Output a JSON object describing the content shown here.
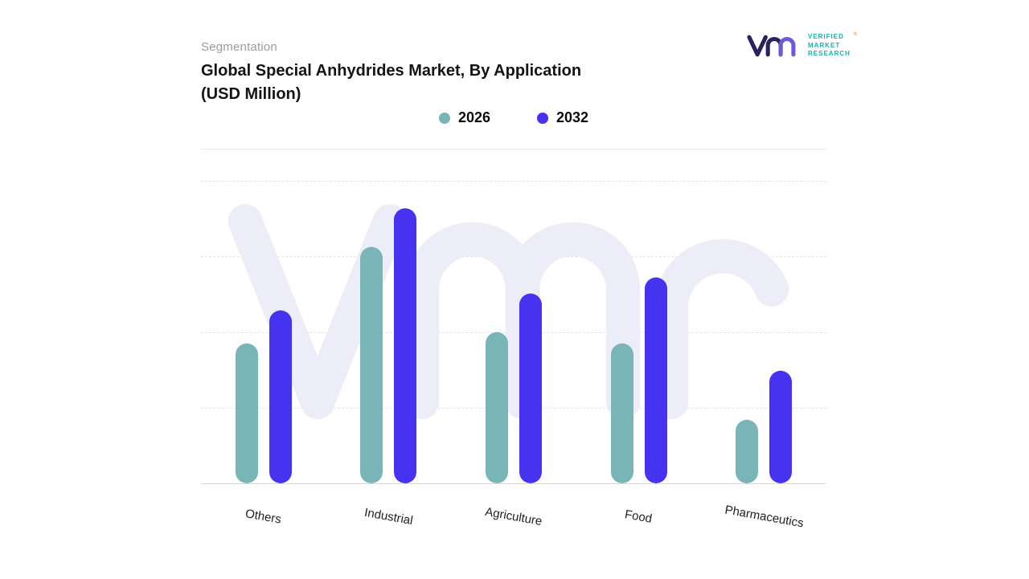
{
  "header": {
    "eyebrow": "Segmentation",
    "title_line1": "Global Special Anhydrides Market, By Application",
    "title_line2": "(USD Million)"
  },
  "logo": {
    "line1": "VERIFIED",
    "line2": "MARKET",
    "line3": "RESEARCH",
    "registered": "®"
  },
  "chart_data": {
    "type": "bar",
    "title": "Global Special Anhydrides Market, By Application (USD Million)",
    "categories": [
      "Others",
      "Industrial",
      "Agriculture",
      "Food",
      "Pharmaceutics"
    ],
    "series": [
      {
        "name": "2026",
        "color": "#79b4b6",
        "values": [
          51,
          86,
          55,
          51,
          23
        ]
      },
      {
        "name": "2032",
        "color": "#4633f0",
        "values": [
          63,
          100,
          69,
          75,
          41
        ]
      }
    ],
    "xlabel": "",
    "ylabel": "",
    "ylim": [
      0,
      110
    ],
    "y_axis_labels_visible": false,
    "grid": "dashed-horizontal",
    "legend_position": "top-center",
    "watermark": "vmr",
    "colors": {
      "series_2026": "#79b4b6",
      "series_2032": "#4633f0",
      "watermark": "#ededfa",
      "gridline": "#e4e4e9",
      "baseline": "#d6d6d6"
    }
  }
}
